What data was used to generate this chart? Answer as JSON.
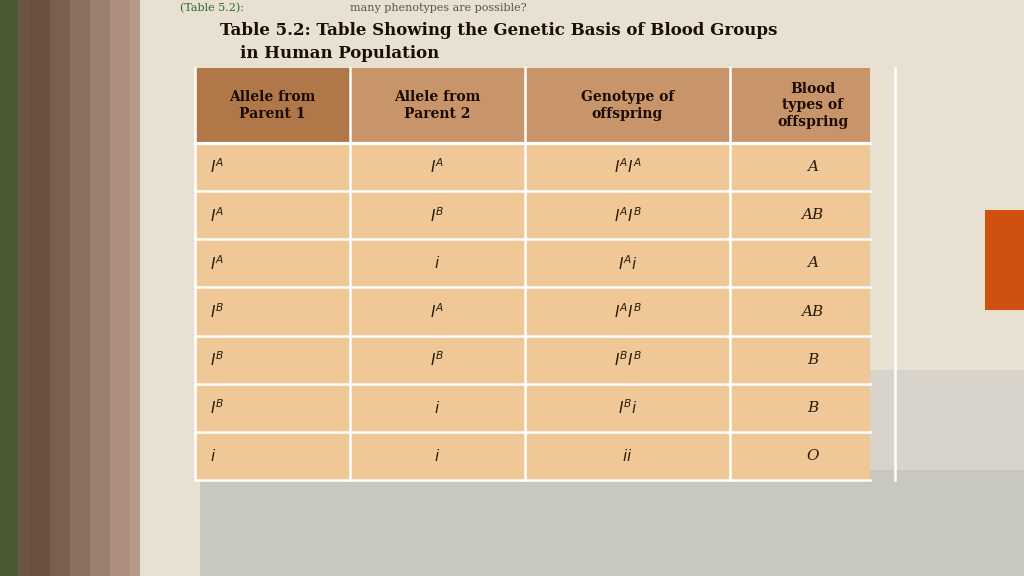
{
  "title_line1": "Table 5.2: Table Showing the Genetic Basis of Blood Groups",
  "title_line2": "in Human Population",
  "title_fontsize": 12,
  "page_bg": "#d8d0c0",
  "left_shadow_color": "#6b5a45",
  "left_shadow2_color": "#8a7060",
  "table_bg": "#f0c898",
  "header_bg": "#c8956a",
  "col1_header_bg": "#b07848",
  "grid_color": "#ffffff",
  "col_headers": [
    "Allele from\nParent 1",
    "Allele from\nParent 2",
    "Genotype of\noffspring",
    "Blood\ntypes of\noffspring"
  ],
  "rows": [
    [
      "$I^A$",
      "$I^A$",
      "$I^AI^A$",
      "A"
    ],
    [
      "$I^A$",
      "$I^B$",
      "$I^AI^B$",
      "AB"
    ],
    [
      "$I^A$",
      "$i$",
      "$I^Ai$",
      "A"
    ],
    [
      "$I^B$",
      "$I^A$",
      "$I^AI^B$",
      "AB"
    ],
    [
      "$I^B$",
      "$I^B$",
      "$I^BI^B$",
      "B"
    ],
    [
      "$I^B$",
      "$i$",
      "$I^Bi$",
      "B"
    ],
    [
      "$i$",
      "$i$",
      "$ii$",
      "O"
    ]
  ],
  "text_color": "#2a1a0a",
  "header_text_color": "#1a0a00",
  "orange_tab_color": "#d05010",
  "figsize": [
    10.24,
    5.76
  ],
  "dpi": 100
}
